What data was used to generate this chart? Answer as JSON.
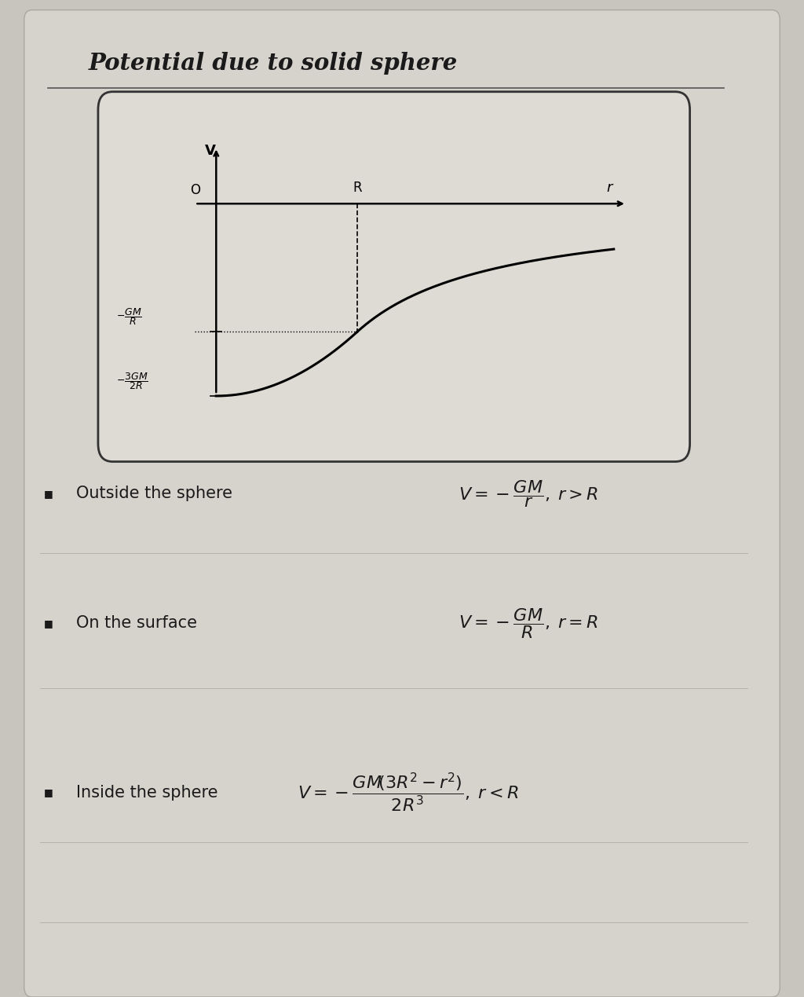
{
  "title": "Potential due to solid sphere",
  "page_bg": "#c8c4be",
  "graph_bg": "#dedad4",
  "text_color": "#1a1a1a",
  "R_val": 2.0,
  "GM": 2.0,
  "x_max": 6.0,
  "y_min": -1.6,
  "y_max": 0.5,
  "outside_label": "Outside the sphere",
  "surface_label": "On the surface",
  "inside_label": "Inside the sphere"
}
